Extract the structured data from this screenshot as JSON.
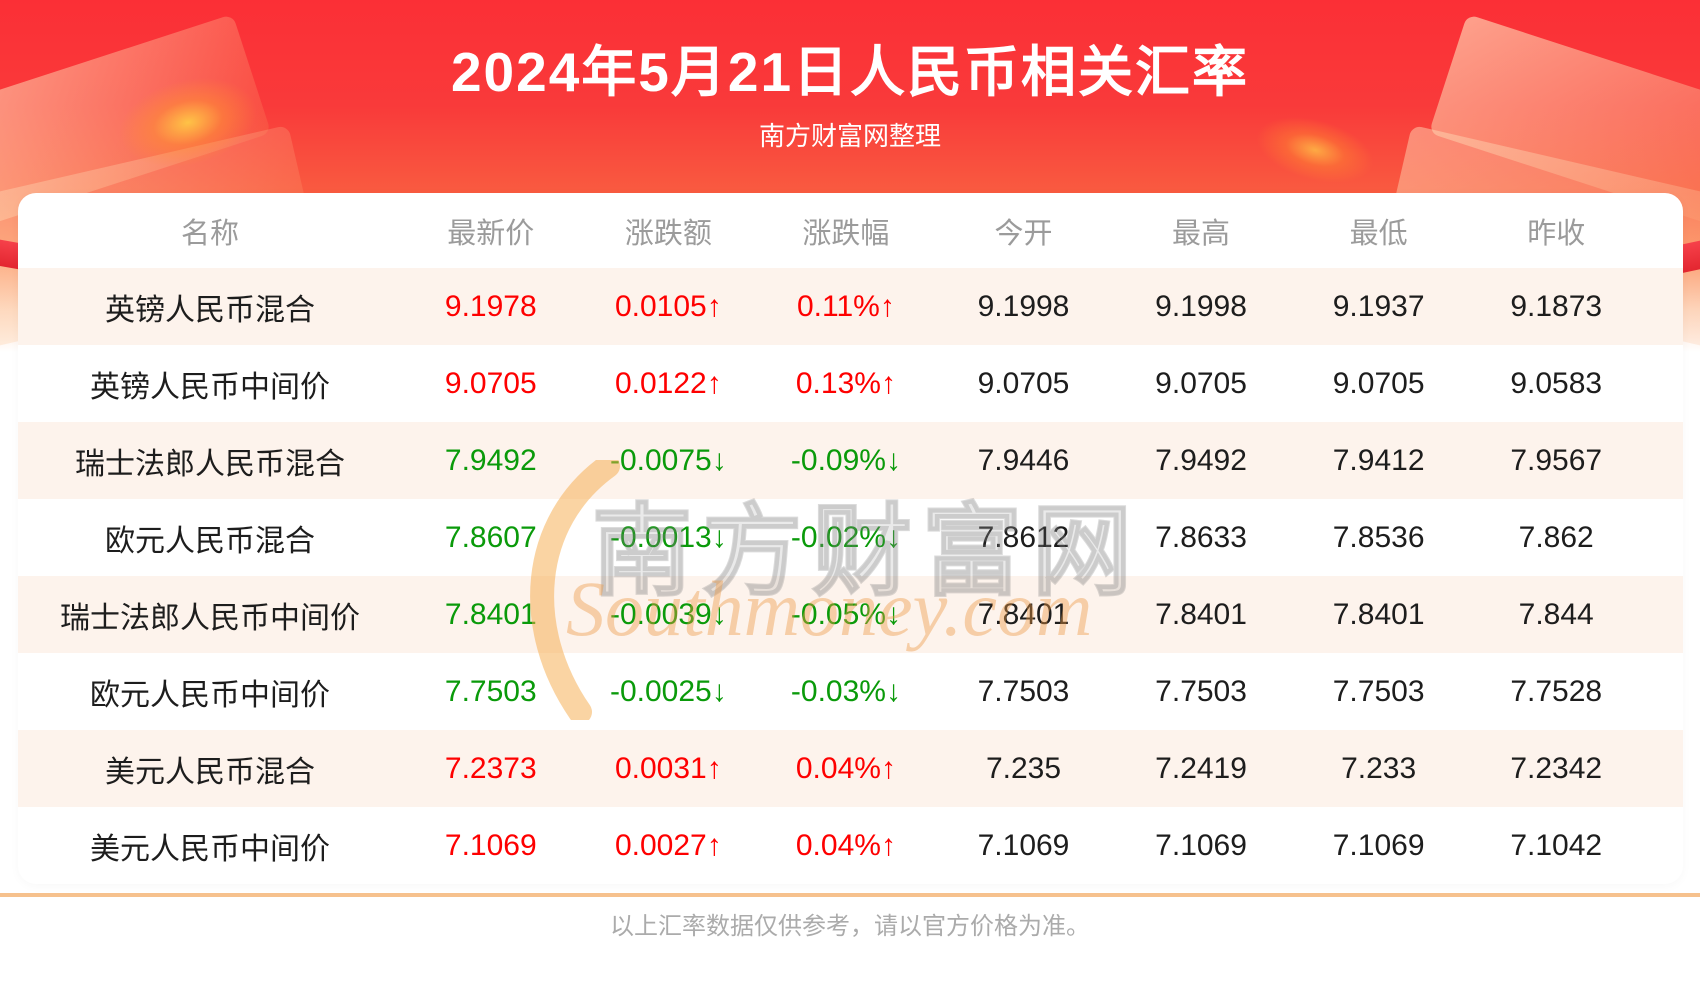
{
  "page": {
    "title": "2024年5月21日人民币相关汇率",
    "subtitle": "南方财富网整理",
    "footer_note": "以上汇率数据仅供参考，请以官方价格为准。"
  },
  "watermark": {
    "cn": "南方财富网",
    "en": "Southmoney.com"
  },
  "colors": {
    "hero_red": "#fb2f36",
    "up": "#fe0000",
    "down": "#0a9a0a",
    "row_alt": "#fdf3ec",
    "header_text": "#9b9b9b",
    "divider": "#f6c18d"
  },
  "table": {
    "columns": [
      "名称",
      "最新价",
      "涨跌额",
      "涨跌幅",
      "今开",
      "最高",
      "最低",
      "昨收"
    ],
    "rows": [
      {
        "name": "英镑人民币混合",
        "last": "9.1978",
        "change": "0.0105↑",
        "pct": "0.11%↑",
        "open": "9.1998",
        "high": "9.1998",
        "low": "9.1937",
        "prev": "9.1873",
        "dir": "up"
      },
      {
        "name": "英镑人民币中间价",
        "last": "9.0705",
        "change": "0.0122↑",
        "pct": "0.13%↑",
        "open": "9.0705",
        "high": "9.0705",
        "low": "9.0705",
        "prev": "9.0583",
        "dir": "up"
      },
      {
        "name": "瑞士法郎人民币混合",
        "last": "7.9492",
        "change": "-0.0075↓",
        "pct": "-0.09%↓",
        "open": "7.9446",
        "high": "7.9492",
        "low": "7.9412",
        "prev": "7.9567",
        "dir": "down"
      },
      {
        "name": "欧元人民币混合",
        "last": "7.8607",
        "change": "-0.0013↓",
        "pct": "-0.02%↓",
        "open": "7.8612",
        "high": "7.8633",
        "low": "7.8536",
        "prev": "7.862",
        "dir": "down"
      },
      {
        "name": "瑞士法郎人民币中间价",
        "last": "7.8401",
        "change": "-0.0039↓",
        "pct": "-0.05%↓",
        "open": "7.8401",
        "high": "7.8401",
        "low": "7.8401",
        "prev": "7.844",
        "dir": "down"
      },
      {
        "name": "欧元人民币中间价",
        "last": "7.7503",
        "change": "-0.0025↓",
        "pct": "-0.03%↓",
        "open": "7.7503",
        "high": "7.7503",
        "low": "7.7503",
        "prev": "7.7528",
        "dir": "down"
      },
      {
        "name": "美元人民币混合",
        "last": "7.2373",
        "change": "0.0031↑",
        "pct": "0.04%↑",
        "open": "7.235",
        "high": "7.2419",
        "low": "7.233",
        "prev": "7.2342",
        "dir": "up"
      },
      {
        "name": "美元人民币中间价",
        "last": "7.1069",
        "change": "0.0027↑",
        "pct": "0.04%↑",
        "open": "7.1069",
        "high": "7.1069",
        "low": "7.1069",
        "prev": "7.1042",
        "dir": "up"
      }
    ]
  }
}
